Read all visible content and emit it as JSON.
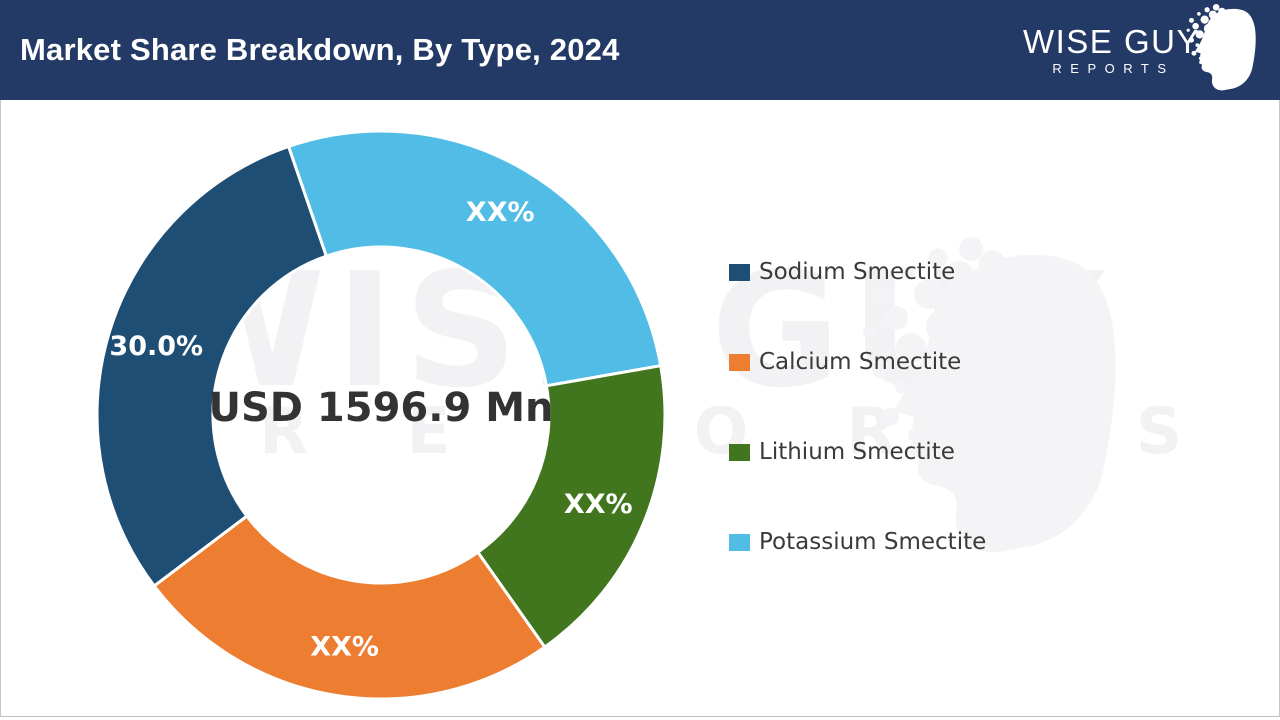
{
  "header": {
    "title": "Market Share Breakdown, By Type, 2024",
    "logo_line1": "WISE GUY",
    "logo_line2": "REPORTS"
  },
  "watermark": {
    "line1": "WISE GUY",
    "line2": "R E P O R T S"
  },
  "chart_data": {
    "type": "pie",
    "subtype": "donut",
    "title": "Market Share Breakdown, By Type, 2024",
    "center_text": "USD 1596.9 Mn",
    "start_angle_deg": -19,
    "inner_radius_ratio": 0.59,
    "legend_position": "right",
    "segments": [
      {
        "label": "Potassium Smectite",
        "value_pct": 27.5,
        "display_label": "XX%",
        "color": "#51BDE6"
      },
      {
        "label": "Lithium Smectite",
        "value_pct": 18.0,
        "display_label": "XX%",
        "color": "#41761F"
      },
      {
        "label": "Calcium Smectite",
        "value_pct": 24.5,
        "display_label": "XX%",
        "color": "#ED7D31"
      },
      {
        "label": "Sodium Smectite",
        "value_pct": 30.0,
        "display_label": "30.0%",
        "color": "#1F4E74"
      }
    ]
  },
  "legend": {
    "items": [
      {
        "label": "Sodium Smectite",
        "color": "#1F4E74"
      },
      {
        "label": "Calcium Smectite",
        "color": "#ED7D31"
      },
      {
        "label": "Lithium Smectite",
        "color": "#41761F"
      },
      {
        "label": "Potassium Smectite",
        "color": "#51BDE6"
      }
    ]
  },
  "colors": {
    "header_bg": "#233A66",
    "center_text": "#333333",
    "legend_text": "#3A3A3A",
    "watermark": "#F2F2F4",
    "border": "#C9C9C9"
  }
}
